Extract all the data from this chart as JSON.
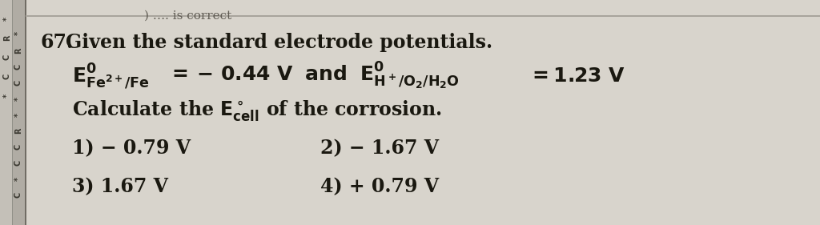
{
  "background_color": "#ccc8c0",
  "main_bg_color": "#d8d4cc",
  "left_bar_color": "#b8b4ac",
  "left_bar2_color": "#888480",
  "top_text_color": "#555550",
  "text_color": "#1a1810",
  "question_number": "67.",
  "question_text": "Given the standard electrode potentials.",
  "option1": "1) − 0.79 V",
  "option2": "2) − 1.67 V",
  "option3": "3) 1.67 V",
  "option4": "4) + 0.79 V",
  "font_size_title": 17,
  "font_size_eq": 16,
  "font_size_options": 16,
  "left_labels": [
    "*",
    "R",
    "C",
    "C",
    "*",
    "*",
    "R",
    "C",
    "C",
    "*",
    "C"
  ],
  "left_labels2": [
    "*",
    "R",
    "C",
    "C",
    "*"
  ],
  "top_partial_text": ") … is correct"
}
